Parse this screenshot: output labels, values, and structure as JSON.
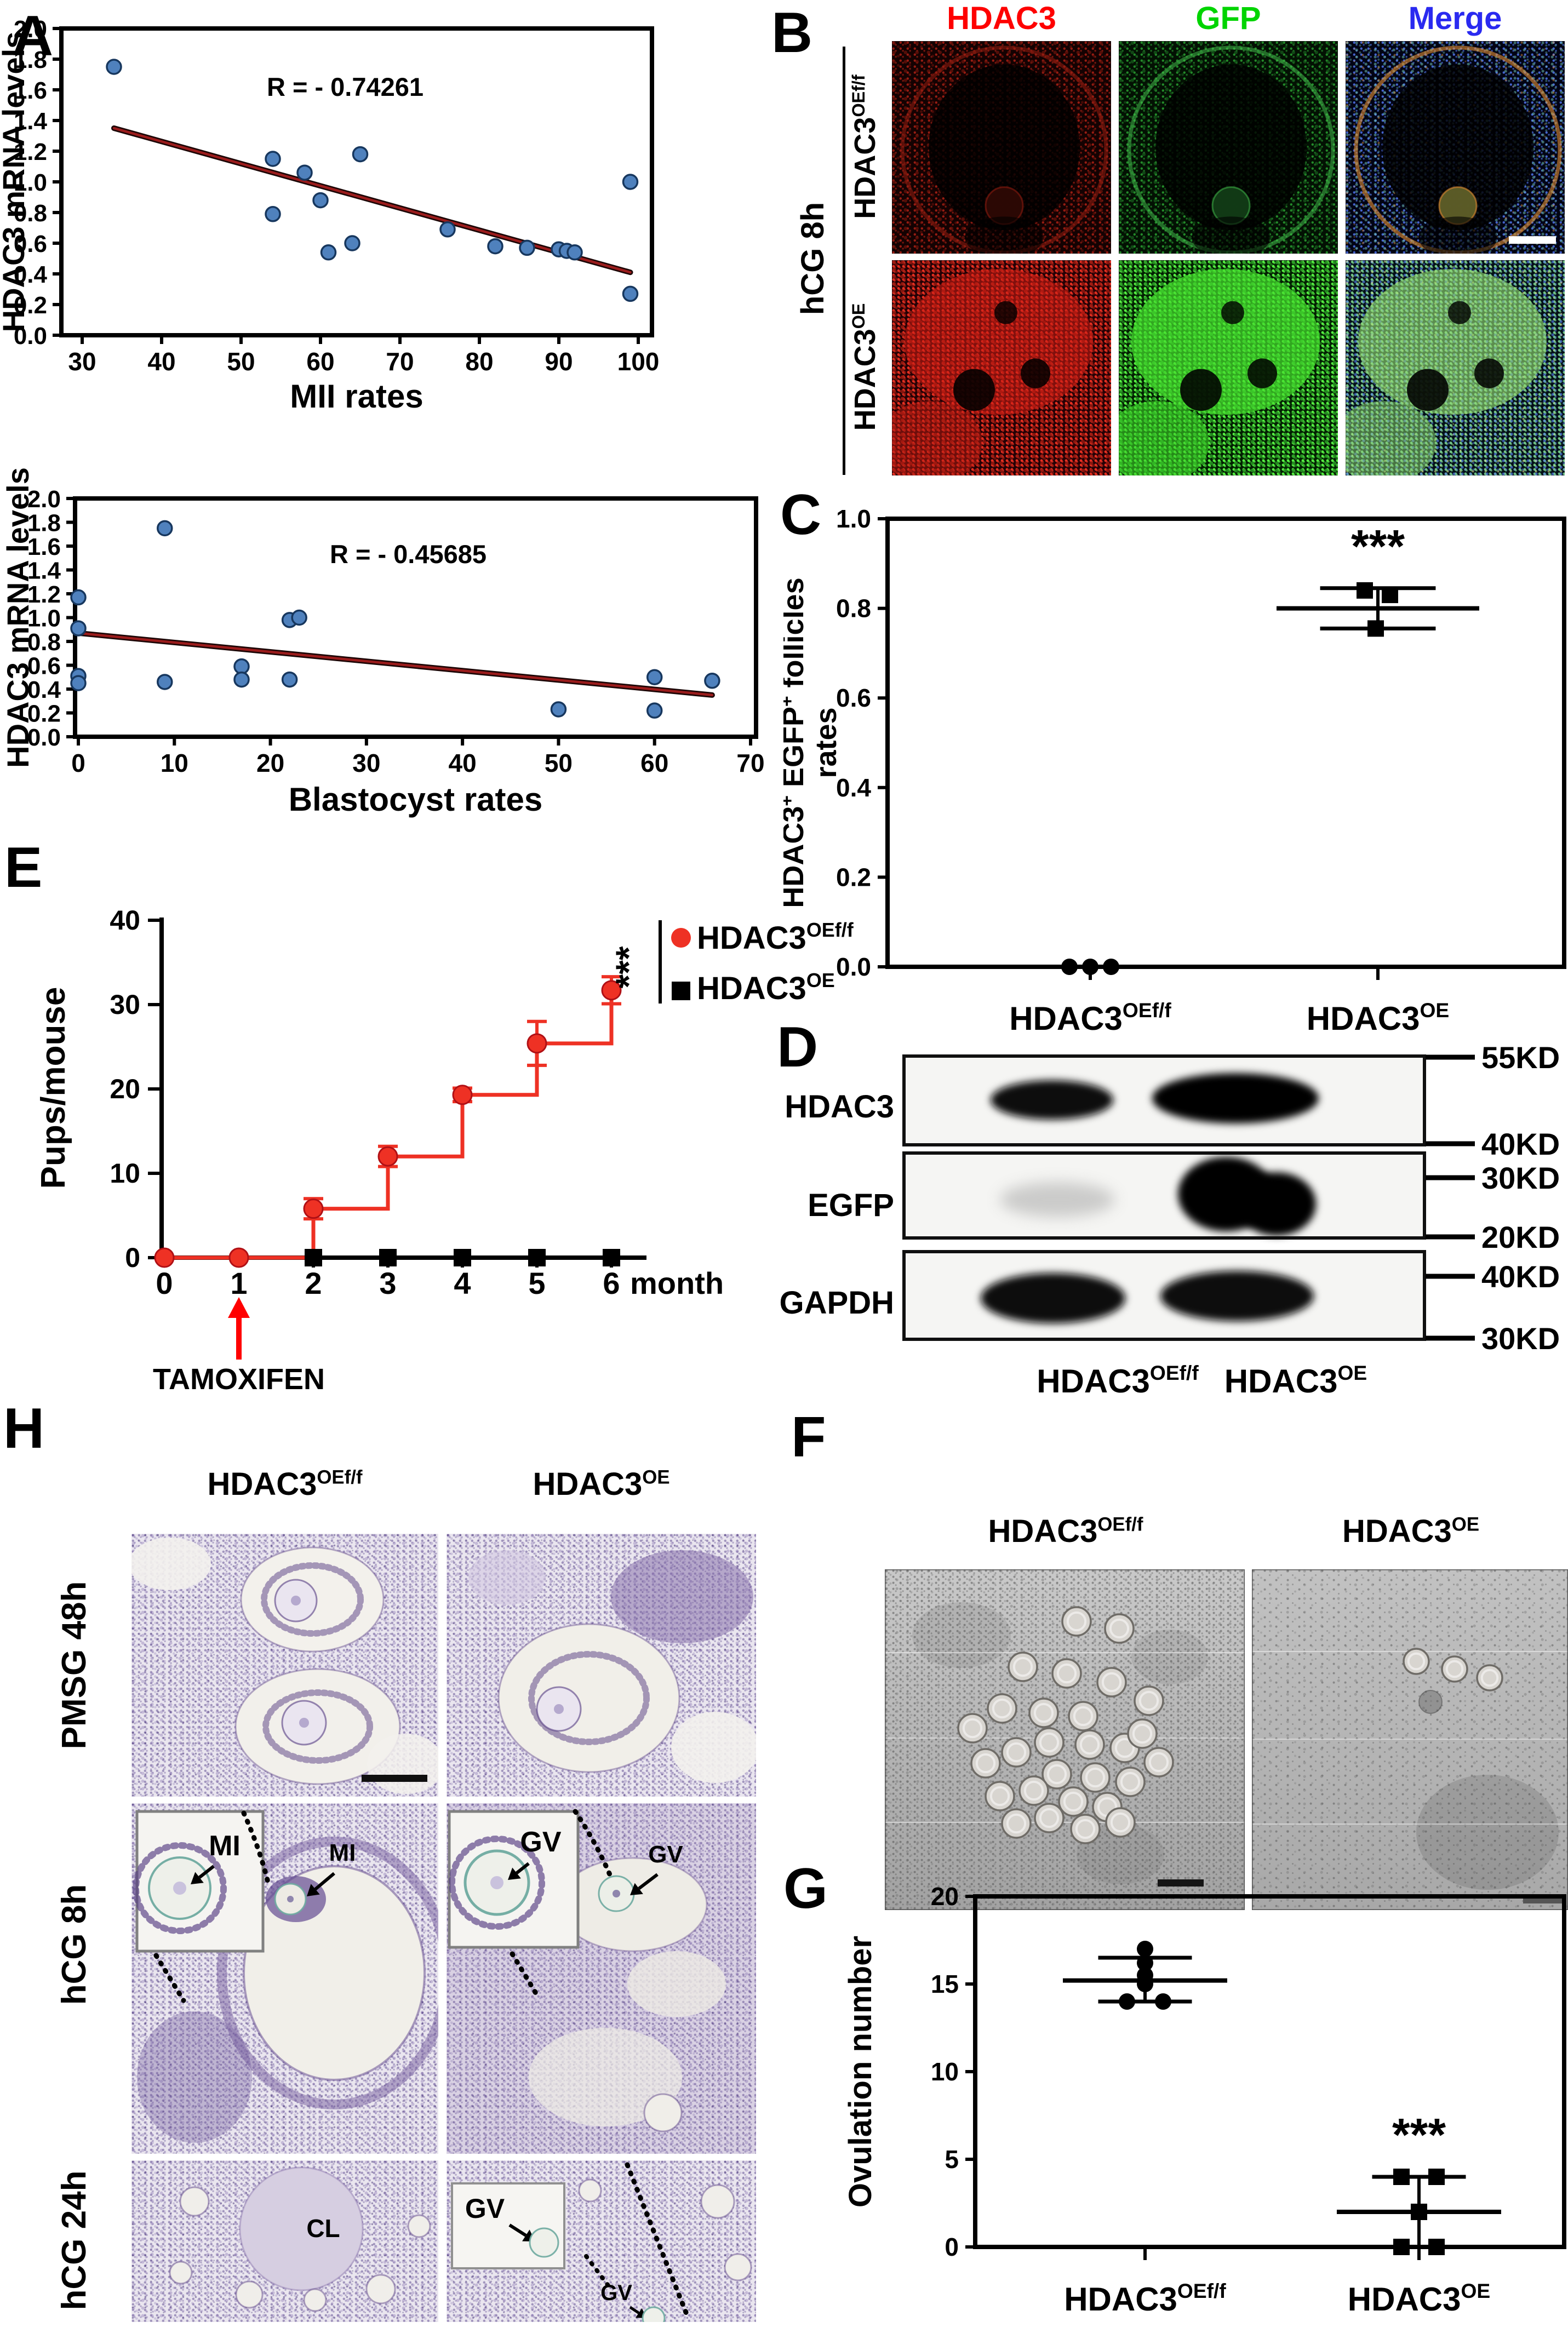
{
  "figure": {
    "background": "#ffffff"
  },
  "labels": {
    "genotype_control": {
      "base": "HDAC3",
      "sup": "OEf/f"
    },
    "genotype_oe": {
      "base": "HDAC3",
      "sup": "OE"
    }
  },
  "panel_A": {
    "letter": "A"
  },
  "panel_B": {
    "letter": "B",
    "headers": [
      {
        "text": "HDAC3",
        "color": "#fe0000"
      },
      {
        "text": "GFP",
        "color": "#00d400"
      },
      {
        "text": "Merge",
        "color": "#2a2af0"
      }
    ],
    "treatment_label": "hCG 8h"
  },
  "panel_C": {
    "letter": "C"
  },
  "panel_D": {
    "letter": "D",
    "rows": [
      {
        "protein": "HDAC3",
        "mw_top": "55KD",
        "mw_bottom": "40KD"
      },
      {
        "protein": "EGFP",
        "mw_top": "30KD",
        "mw_bottom": "20KD"
      },
      {
        "protein": "GAPDH",
        "mw_top": "40KD",
        "mw_bottom": "30KD"
      }
    ]
  },
  "panel_E": {
    "letter": "E"
  },
  "panel_F": {
    "letter": "F"
  },
  "panel_G": {
    "letter": "G"
  },
  "panel_H": {
    "letter": "H",
    "row_labels": [
      "PMSG 48h",
      "hCG 8h",
      "hCG 24h"
    ],
    "annotations": {
      "mi": "MI",
      "gv": "GV",
      "cl": "CL"
    }
  },
  "chart_data": [
    {
      "id": "hdac3_vs_mii",
      "type": "scatter",
      "xlabel": "MII rates",
      "ylabel": "HDAC3 mRNA levels",
      "annotation": "R = - 0.74261",
      "xticks": [
        30,
        40,
        50,
        60,
        70,
        80,
        90,
        100
      ],
      "yticks": [
        "0.0",
        "0.2",
        "0.4",
        "0.6",
        "0.8",
        "1.0",
        "1.2",
        "1.4",
        "1.6",
        "1.8",
        "2.0"
      ],
      "xlim": [
        27,
        102
      ],
      "ylim": [
        0,
        2
      ],
      "points": [
        [
          34,
          1.75
        ],
        [
          54,
          1.15
        ],
        [
          54,
          0.79
        ],
        [
          58,
          1.06
        ],
        [
          60,
          0.88
        ],
        [
          61,
          0.54
        ],
        [
          64,
          0.6
        ],
        [
          65,
          1.18
        ],
        [
          76,
          0.69
        ],
        [
          82,
          0.58
        ],
        [
          86,
          0.57
        ],
        [
          90,
          0.56
        ],
        [
          91,
          0.55
        ],
        [
          92,
          0.54
        ],
        [
          99,
          1.0
        ],
        [
          99,
          0.27
        ]
      ],
      "trend": [
        [
          34,
          1.35
        ],
        [
          99,
          0.41
        ]
      ],
      "point_fill": "#4f81bd",
      "point_stroke": "#17375e",
      "trend_color": "#9b1c1c"
    },
    {
      "id": "hdac3_vs_blastocyst",
      "type": "scatter",
      "xlabel": "Blastocyst rates",
      "ylabel": "HDAC3 mRNA levels",
      "annotation": "R = - 0.45685",
      "xticks": [
        0,
        10,
        20,
        30,
        40,
        50,
        60,
        70
      ],
      "yticks": [
        "0.0",
        "0.2",
        "0.4",
        "0.6",
        "0.8",
        "1.0",
        "1.2",
        "1.4",
        "1.6",
        "1.8",
        "2.0"
      ],
      "xlim": [
        0,
        70
      ],
      "ylim": [
        0,
        2
      ],
      "points": [
        [
          0,
          1.17
        ],
        [
          0,
          0.91
        ],
        [
          0,
          0.51
        ],
        [
          0,
          0.45
        ],
        [
          9,
          1.75
        ],
        [
          9,
          0.46
        ],
        [
          17,
          0.59
        ],
        [
          17,
          0.48
        ],
        [
          22,
          0.98
        ],
        [
          22,
          0.48
        ],
        [
          23,
          1.0
        ],
        [
          50,
          0.23
        ],
        [
          60,
          0.5
        ],
        [
          60,
          0.22
        ],
        [
          66,
          0.47
        ]
      ],
      "trend": [
        [
          0,
          0.87
        ],
        [
          66,
          0.35
        ]
      ],
      "point_fill": "#4f81bd",
      "point_stroke": "#17375e",
      "trend_color": "#9b1c1c"
    },
    {
      "id": "egfp_follicle_rates",
      "type": "dot-category",
      "ylabel_lines": [
        [
          {
            "t": "HDAC3"
          },
          {
            "t": "+",
            "sup": true
          },
          {
            "t": " EGFP"
          },
          {
            "t": "+",
            "sup": true
          },
          {
            "t": " follicles"
          }
        ],
        [
          {
            "t": "rates"
          }
        ]
      ],
      "yticks": [
        "0.0",
        "0.2",
        "0.4",
        "0.6",
        "0.8",
        "1.0"
      ],
      "ylim": [
        0,
        1
      ],
      "groups": [
        {
          "label": "genotype_control",
          "marker": "circle",
          "values": [
            0,
            0,
            0
          ]
        },
        {
          "label": "genotype_oe",
          "marker": "square",
          "values": [
            0.84,
            0.83,
            0.755
          ],
          "mean": 0.8,
          "err_low": 0.755,
          "err_high": 0.845,
          "sig": "***"
        }
      ]
    },
    {
      "id": "pups_per_mouse",
      "type": "step-line",
      "ylabel": "Pups/mouse",
      "yticks": [
        0,
        10,
        20,
        30,
        40
      ],
      "ylim": [
        0,
        40
      ],
      "xticks": [
        0,
        1,
        2,
        3,
        4,
        5,
        6
      ],
      "x_unit": "month",
      "series": [
        {
          "label": "genotype_control",
          "marker": "circle",
          "color": "#ee3124",
          "values": [
            0,
            0,
            5.8,
            12,
            19.3,
            25.4,
            31.7
          ],
          "errors": [
            0,
            0,
            1.2,
            1.2,
            0.8,
            2.6,
            1.6
          ]
        },
        {
          "label": "genotype_oe",
          "marker": "square",
          "color": "#000000",
          "values": [
            0,
            0,
            0,
            0,
            0,
            0,
            0
          ],
          "errors": [
            0,
            0,
            0,
            0,
            0,
            0,
            0
          ]
        }
      ],
      "sig": "***",
      "event_annotation": {
        "text": "TAMOXIFEN",
        "x": 1,
        "arrow_color": "#ff0000"
      }
    },
    {
      "id": "ovulation_number",
      "type": "dot-category",
      "ylabel": "Ovulation number",
      "yticks": [
        0,
        5,
        10,
        15,
        20
      ],
      "ylim": [
        0,
        20
      ],
      "groups": [
        {
          "label": "genotype_control",
          "marker": "circle",
          "values": [
            17,
            16.2,
            15.5,
            15,
            14,
            14
          ],
          "mean": 15.2,
          "err_low": 14,
          "err_high": 16.5
        },
        {
          "label": "genotype_oe",
          "marker": "square",
          "values": [
            4,
            4,
            2,
            0,
            0
          ],
          "mean": 2,
          "err_low": 0,
          "err_high": 4,
          "sig": "***"
        }
      ]
    }
  ]
}
